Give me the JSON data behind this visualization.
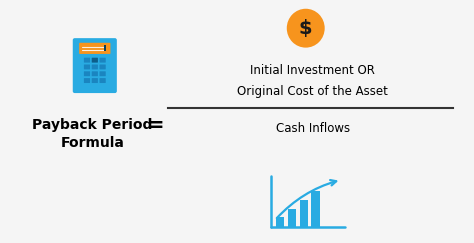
{
  "bg_color": "#f5f5f5",
  "title_line1": "Payback Period",
  "title_line2": "Formula",
  "equals_sign": "=",
  "numerator_line1": "Initial Investment OR",
  "numerator_line2": "Original Cost of the Asset",
  "denominator": "Cash Inflows",
  "title_color": "#000000",
  "formula_color": "#000000",
  "calc_color_body": "#29abe2",
  "calc_color_screen": "#f7941d",
  "calc_color_screen_line": "#c0440a",
  "calc_btn_color": "#1a85c0",
  "calc_btn_dark": "#0d5e8a",
  "dollar_circle_color": "#f7941d",
  "dollar_sign_color": "#1a1a1a",
  "chart_color": "#29abe2",
  "arrow_color": "#29abe2",
  "line_color": "#333333",
  "fig_width": 4.74,
  "fig_height": 2.43,
  "dpi": 100
}
